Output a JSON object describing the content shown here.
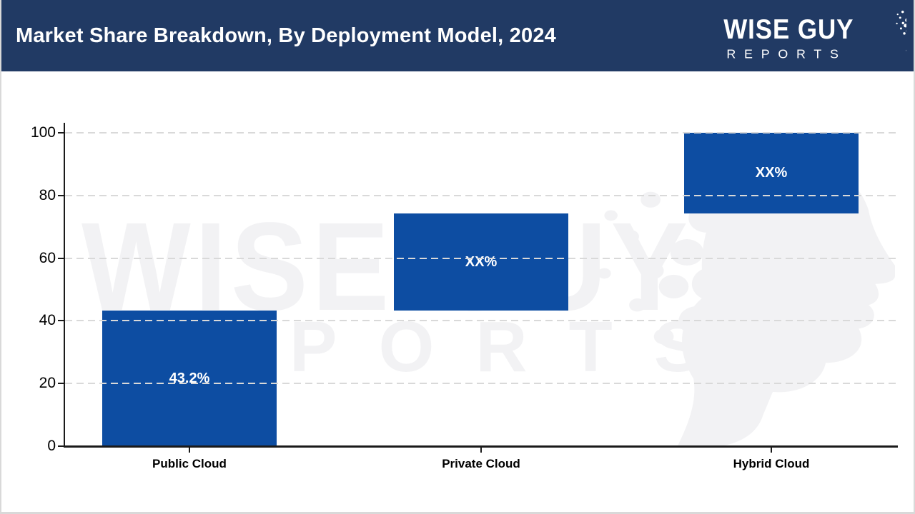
{
  "header": {
    "title": "Market Share Breakdown, By Deployment Model, 2024"
  },
  "brand": {
    "logo_icon": "wiseguy-dotted-head-icon",
    "line1": "WISE GUY",
    "line2": "REPORTS"
  },
  "watermark": {
    "line1": "WISE GUY",
    "line2": "REPORTS"
  },
  "colors": {
    "header_bg": "#213a64",
    "bar": "#0d4da2",
    "grid": "#d9d9d9",
    "axis": "#1a1a1a",
    "bar_label": "#ffffff",
    "watermark": "#f2f2f4"
  },
  "chart_data": {
    "type": "bar",
    "subtype": "floating-waterfall",
    "title": "Market Share Breakdown, By Deployment Model, 2024",
    "categories": [
      "Public Cloud",
      "Private Cloud",
      "Hybrid Cloud"
    ],
    "bars": [
      {
        "category": "Public Cloud",
        "start": 0,
        "end": 43.2,
        "label": "43.2%"
      },
      {
        "category": "Private Cloud",
        "start": 43.2,
        "end": 74.2,
        "label": "XX%"
      },
      {
        "category": "Hybrid Cloud",
        "start": 74.2,
        "end": 100,
        "label": "XX%"
      }
    ],
    "xlabel": "",
    "ylabel": "",
    "ylim": [
      0,
      100
    ],
    "yticks": [
      0,
      20,
      40,
      60,
      80,
      100
    ],
    "grid": "horizontal-dashed",
    "gridlines_over_bars": true,
    "legend": "none",
    "bar_color": "#0d4da2",
    "value_label_color": "#ffffff"
  }
}
